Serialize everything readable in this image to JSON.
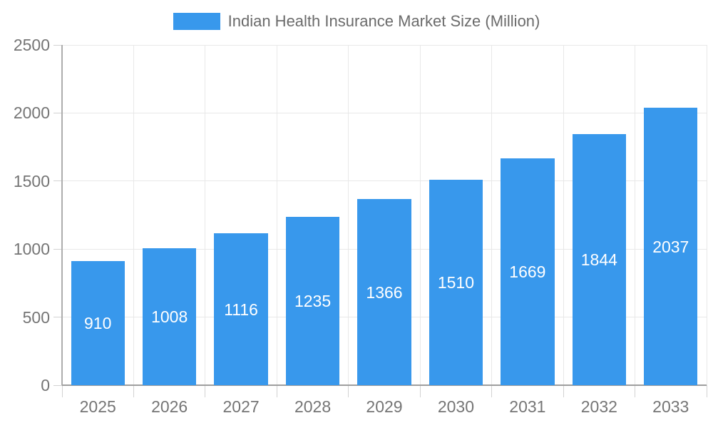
{
  "legend": {
    "label": "Indian Health Insurance Market Size (Million)"
  },
  "chart_data": {
    "type": "bar",
    "title": "Indian Health Insurance Market Size (Million)",
    "series_name": "Indian Health Insurance Market Size (Million)",
    "categories": [
      "2025",
      "2026",
      "2027",
      "2028",
      "2029",
      "2030",
      "2031",
      "2032",
      "2033"
    ],
    "values": [
      910,
      1008,
      1116,
      1235,
      1366,
      1510,
      1669,
      1844,
      2037
    ],
    "xlabel": "",
    "ylabel": "",
    "ylim": [
      0,
      2500
    ],
    "yticks": [
      0,
      500,
      1000,
      1500,
      2000,
      2500
    ],
    "grid": true,
    "legend_position": "top",
    "bar_color": "#3898EC",
    "value_label_color": "#FFFFFF",
    "axis_label_color": "#757575"
  }
}
